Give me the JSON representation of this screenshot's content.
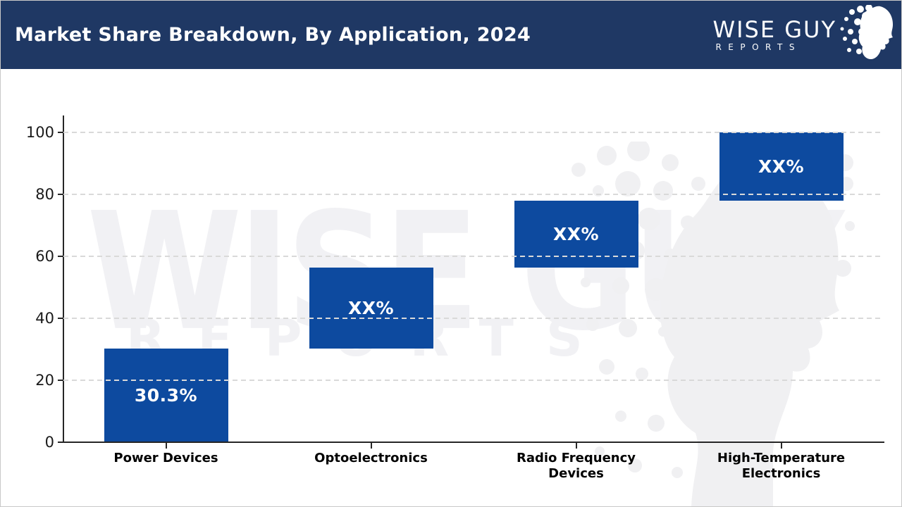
{
  "header": {
    "title": "Market Share Breakdown, By Application, 2024",
    "logo": {
      "wordmark": "WISE GUY",
      "subtext": "REPORTS"
    }
  },
  "watermark": {
    "wordmark": "WISE GUY",
    "subtext": "REPORTS"
  },
  "colors": {
    "header_bg": "#1F3864",
    "bar_fill": "#0D4A9F",
    "bar_label": "#FFFFFF",
    "grid": "#D9D9D9",
    "axis": "#262626",
    "tick_label": "#1A1A1A",
    "watermark": "#F1F1F4",
    "frame_border": "#C9C9C9",
    "title_text": "#FFFFFF"
  },
  "chart_data": {
    "type": "bar",
    "subtype": "waterfall",
    "title": "Market Share Breakdown, By Application, 2024",
    "categories": [
      "Power Devices",
      "Optoelectronics",
      "Radio Frequency\nDevices",
      "High-Temperature\nElectronics"
    ],
    "bars": [
      {
        "category": "Power Devices",
        "start": 0,
        "end": 30.3,
        "label": "30.3%"
      },
      {
        "category": "Optoelectronics",
        "start": 30.3,
        "end": 56.4,
        "label": "XX%"
      },
      {
        "category": "Radio Frequency Devices",
        "start": 56.4,
        "end": 78,
        "label": "XX%"
      },
      {
        "category": "High-Temperature Electronics",
        "start": 78,
        "end": 100,
        "label": "XX%"
      }
    ],
    "ylim": [
      0,
      100
    ],
    "yticks": [
      0,
      20,
      40,
      60,
      80,
      100
    ],
    "xlabel": "",
    "ylabel": "",
    "grid": "horizontal-dashed",
    "legend": "none"
  }
}
